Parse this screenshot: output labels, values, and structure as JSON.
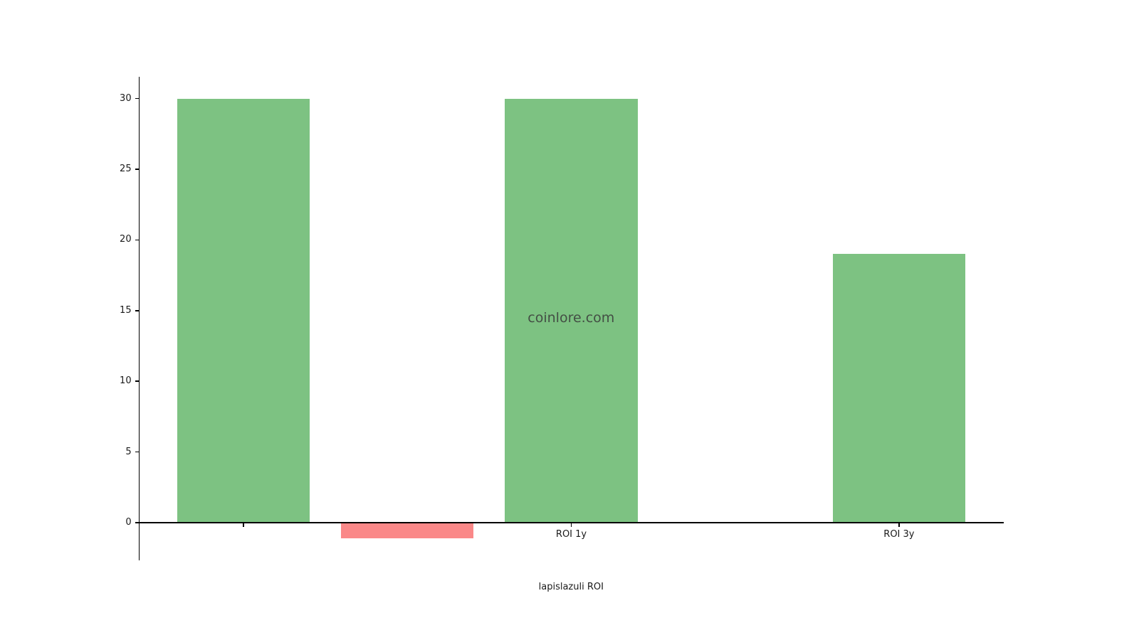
{
  "page": {
    "background": "#ffffff"
  },
  "chart_data": {
    "type": "bar",
    "title": "lapislazuli ROI",
    "watermark": "coinlore.com",
    "categories": [
      "",
      "",
      "ROI 1y",
      "ROI 3y"
    ],
    "x_positions": [
      0,
      1,
      2,
      4
    ],
    "values": [
      30,
      -1.1,
      30,
      19
    ],
    "colors": {
      "positive": "#7dc282",
      "negative": "#fa8888",
      "axis": "#000000",
      "tick_text": "#1a1a1a",
      "watermark": "#3a3a3a"
    },
    "xticks": {
      "positions": [
        0,
        2,
        4
      ],
      "labels": [
        "",
        "ROI 1y",
        "ROI 3y"
      ]
    },
    "yticks": [
      0,
      5,
      10,
      15,
      20,
      25,
      30
    ],
    "ylim": [
      -2.67,
      31.54
    ],
    "xlim": [
      -0.641,
      4.639
    ],
    "bar_width": 0.809,
    "grid": false,
    "legend": false,
    "xlabel": "",
    "ylabel": ""
  }
}
